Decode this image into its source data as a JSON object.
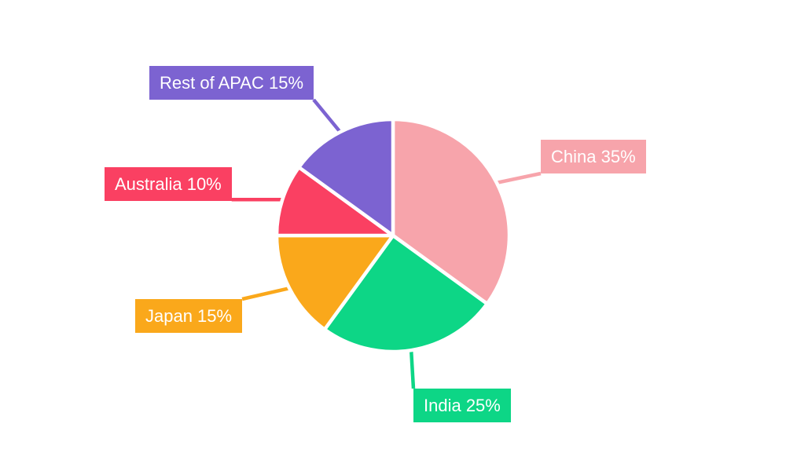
{
  "chart_data": {
    "type": "pie",
    "title": "",
    "legend": "none",
    "background": "#FFFFFF",
    "start_angle_deg": 0,
    "direction": "clockwise",
    "label_text_color": "#FFFFFF",
    "gap_color": "#FFFFFF",
    "slices": [
      {
        "label": "China",
        "value": 35,
        "percent": "35%",
        "color": "#F7A4AB",
        "label_text": "China 35%"
      },
      {
        "label": "India",
        "value": 25,
        "percent": "25%",
        "color": "#0DD686",
        "label_text": "India 25%"
      },
      {
        "label": "Japan",
        "value": 15,
        "percent": "15%",
        "color": "#FAA81B",
        "label_text": "Japan 15%"
      },
      {
        "label": "Australia",
        "value": 10,
        "percent": "10%",
        "color": "#FA4062",
        "label_text": "Australia 10%"
      },
      {
        "label": "Rest of APAC",
        "value": 15,
        "percent": "15%",
        "color": "#7C63D1",
        "label_text": "Rest of APAC 15%"
      }
    ]
  }
}
